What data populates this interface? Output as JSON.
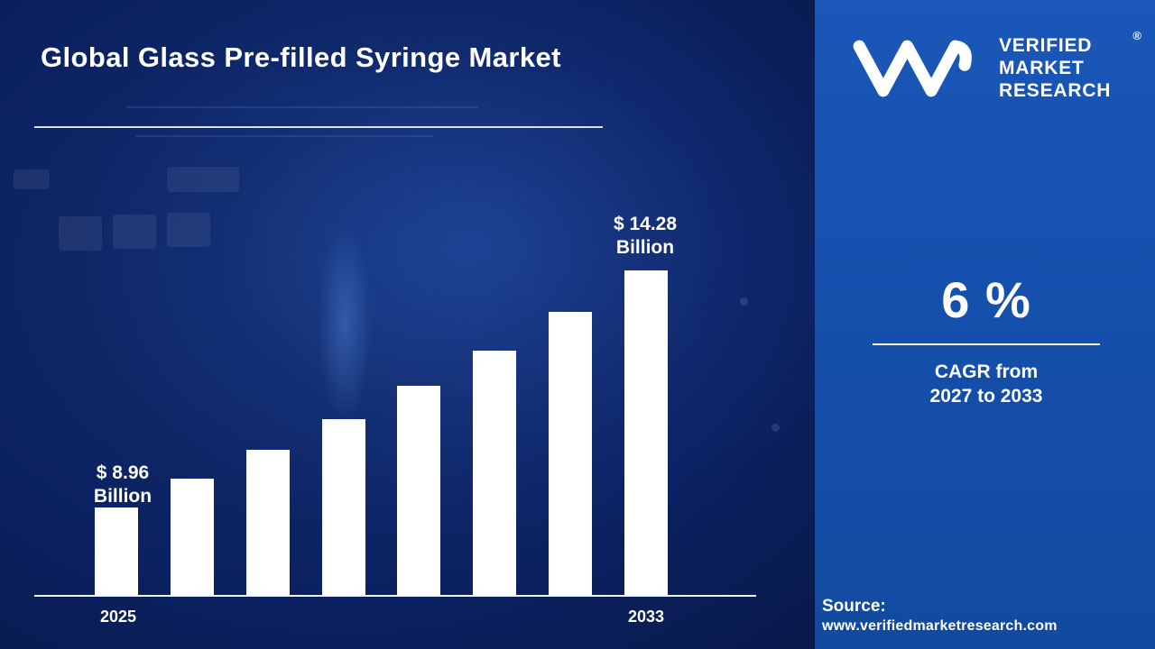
{
  "page_title": "Global Glass Pre-filled Syringe Market",
  "chart_data": {
    "type": "bar",
    "title": "Global Glass Pre-filled Syringe Market",
    "unit": "USD Billion",
    "bar_color": "#ffffff",
    "values": [
      8.96,
      9.6,
      10.26,
      10.95,
      11.69,
      12.49,
      13.35,
      14.28
    ],
    "x_tick_labels": [
      "2025",
      "2033"
    ],
    "start_label": {
      "line1": "$ 8.96",
      "line2": "Billion"
    },
    "end_label": {
      "line1": "$ 14.28",
      "line2": "Billion"
    },
    "ylim": [
      7,
      15
    ],
    "gridlines": false,
    "legend": false
  },
  "panel": {
    "background_color": "#1550ad",
    "logo": {
      "monogram": "VM",
      "lines": [
        "VERIFIED",
        "MARKET",
        "RESEARCH"
      ],
      "registered": "®"
    },
    "stat_value": "6 %",
    "stat_caption_line1": "CAGR from",
    "stat_caption_line2": "2027 to 2033",
    "source_label": "Source:",
    "source_url": "www.verifiedmarketresearch.com"
  },
  "colors": {
    "left_background": "#0b2161",
    "accent_blue": "#1550ad",
    "text": "#ffffff"
  }
}
